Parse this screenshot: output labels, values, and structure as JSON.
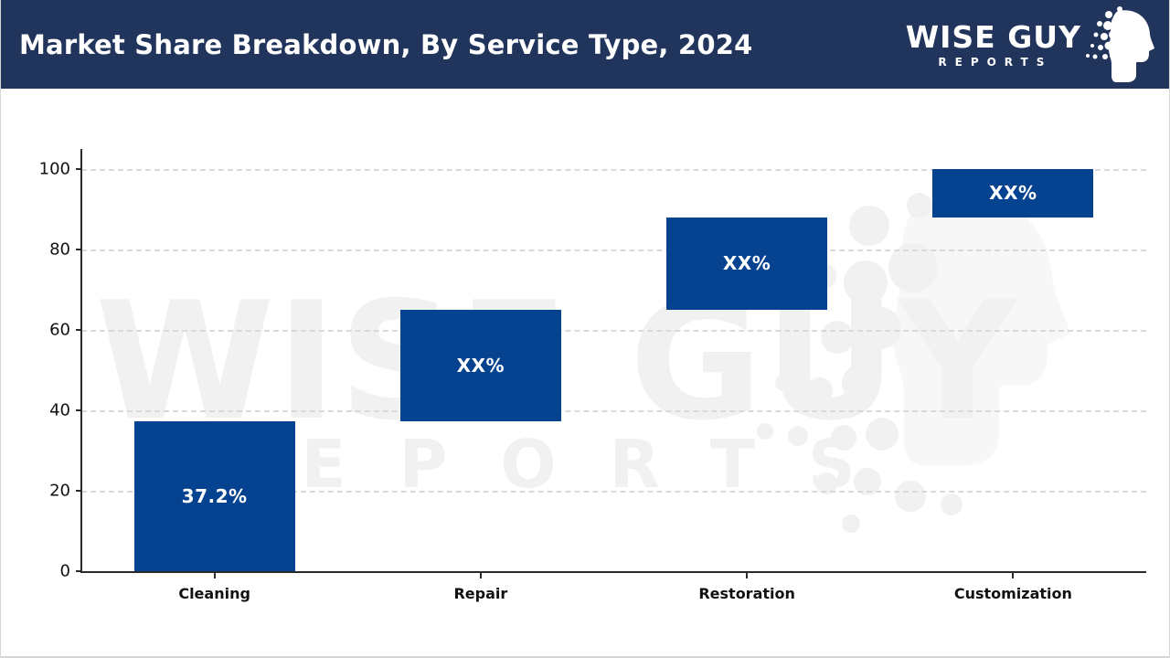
{
  "header": {
    "title": "Market Share Breakdown, By Service Type, 2024",
    "bg_color": "#20345C",
    "logo": {
      "line1": "WISE GUY",
      "line2": "REPORTS",
      "head_icon": "dotted-head-profile-icon"
    }
  },
  "watermark": {
    "line1": "WISE GUY",
    "line2": "REPORTS",
    "color": "#f1f1f1"
  },
  "chart_data": {
    "type": "bar",
    "subtype": "waterfall",
    "title": "Market Share Breakdown, By Service Type, 2024",
    "xlabel": "",
    "ylabel": "",
    "categories": [
      "Cleaning",
      "Repair",
      "Restoration",
      "Customization"
    ],
    "segments": [
      {
        "category": "Cleaning",
        "start": 0,
        "end": 37.2,
        "label": "37.2%"
      },
      {
        "category": "Repair",
        "start": 37.2,
        "end": 65,
        "label": "XX%"
      },
      {
        "category": "Restoration",
        "start": 65,
        "end": 88,
        "label": "XX%"
      },
      {
        "category": "Customization",
        "start": 88,
        "end": 100,
        "label": "XX%"
      }
    ],
    "y_ticks": [
      0,
      20,
      40,
      60,
      80,
      100
    ],
    "ylim": [
      0,
      100
    ],
    "grid": "horizontal-dashed",
    "legend": "none",
    "bar_color": "#05428F",
    "bar_label_color": "#ffffff",
    "axis_color": "#2a2a2a",
    "gridline_color": "#d9d9d9"
  }
}
